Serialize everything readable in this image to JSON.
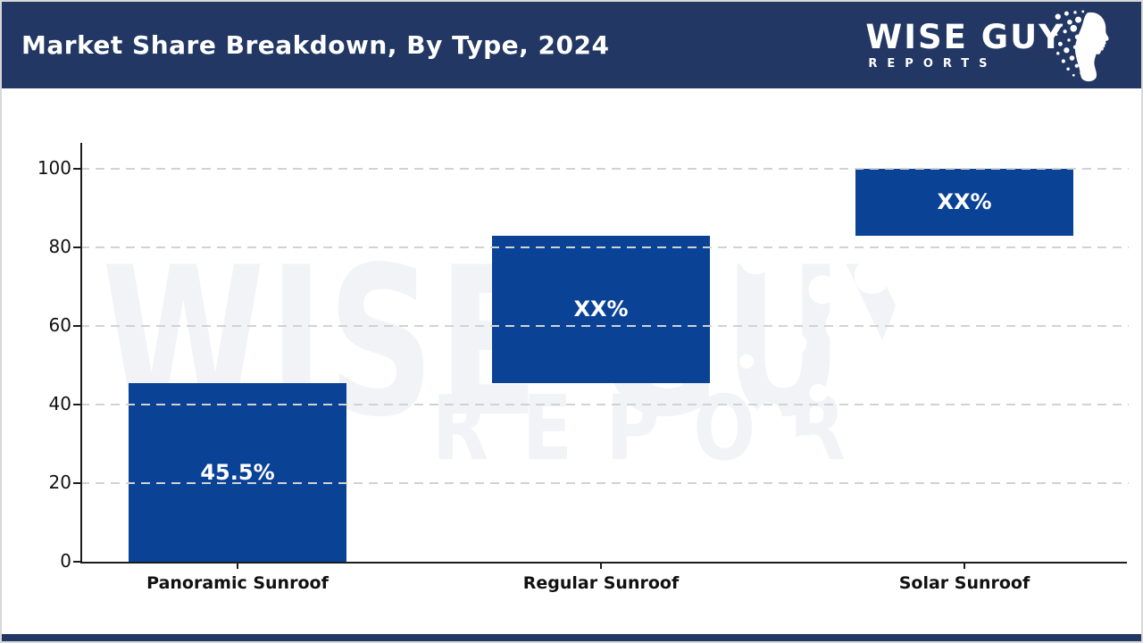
{
  "header": {
    "title": "Market Share Breakdown, By Type, 2024",
    "logo_line1": "WISE GUY",
    "logo_line2": "REPORTS",
    "bg_color": "#223763"
  },
  "watermark": {
    "line1": "WISE GUY",
    "line2": "REPORTS"
  },
  "icons": {
    "logo_face": "dotted-head-profile-icon",
    "watermark_face": "dotted-head-profile-watermark"
  },
  "chart_data": {
    "type": "bar",
    "variant": "floating-waterfall",
    "title": "Market Share Breakdown, By Type, 2024",
    "categories": [
      "Panoramic Sunroof",
      "Regular Sunroof",
      "Solar Sunroof"
    ],
    "segments": [
      {
        "category": "Panoramic Sunroof",
        "start": 0,
        "end": 45.5,
        "label": "45.5%"
      },
      {
        "category": "Regular Sunroof",
        "start": 45.5,
        "end": 83,
        "label": "XX%"
      },
      {
        "category": "Solar Sunroof",
        "start": 83,
        "end": 100,
        "label": "XX%"
      }
    ],
    "xlabel": "",
    "ylabel": "",
    "ylim": [
      0,
      100
    ],
    "yticks": [
      0,
      20,
      40,
      60,
      80,
      100
    ],
    "grid": true,
    "grid_style": "dashed-horizontal",
    "legend": false,
    "bar_color": "#0a4296",
    "bar_label_color": "#ffffff",
    "axis_color": "#1c1c1c",
    "gridline_color": "#d2d2d2",
    "header_color": "#223763"
  }
}
